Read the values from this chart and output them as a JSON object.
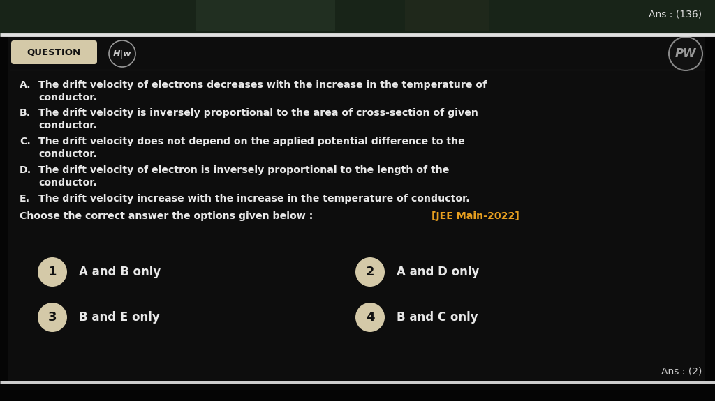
{
  "background_color": "#0a0a0a",
  "top_area_color": "#1a2a1a",
  "top_ans_text": "Ans : (136)",
  "top_ans_color": "#dddddd",
  "question_label": "QUESTION",
  "question_label_bg": "#d4c9a8",
  "question_label_text_color": "#111111",
  "hiw_text": "H|w",
  "option_A_label": "A.",
  "option_A_line1": "The drift velocity of electrons decreases with the increase in the temperature of",
  "option_A_line2": "conductor.",
  "option_B_label": "B.",
  "option_B_line1": "The drift velocity is inversely proportional to the area of cross-section of given",
  "option_B_line2": "conductor.",
  "option_C_label": "C.",
  "option_C_line1": "The drift velocity does not depend on the applied potential difference to the",
  "option_C_line2": "conductor.",
  "option_D_label": "D.",
  "option_D_line1": "The drift velocity of electron is inversely proportional to the length of the",
  "option_D_line2": "conductor.",
  "option_E_label": "E.",
  "option_E_line1": "The drift velocity increase with the increase in the temperature of conductor.",
  "choose_text": "Choose the correct answer the options given below :",
  "jee_text": "[JEE Main-2022]",
  "jee_color": "#e8a020",
  "text_color": "#e8e8e8",
  "choice_1": "1",
  "choice_1_label": "A and B only",
  "choice_2": "2",
  "choice_2_label": "A and D only",
  "choice_3": "3",
  "choice_3_label": "B and E only",
  "choice_4": "4",
  "choice_4_label": "B and C only",
  "circle_bg": "#d4c9a8",
  "circle_text_color": "#111111",
  "bottom_ans_text": "Ans : (2)",
  "bottom_ans_color": "#cccccc",
  "divider_color": "#cccccc",
  "content_bg": "#0d0d0d",
  "pw_text": "PW",
  "pw_circle_bg": "#111111",
  "pw_circle_border": "#888888"
}
